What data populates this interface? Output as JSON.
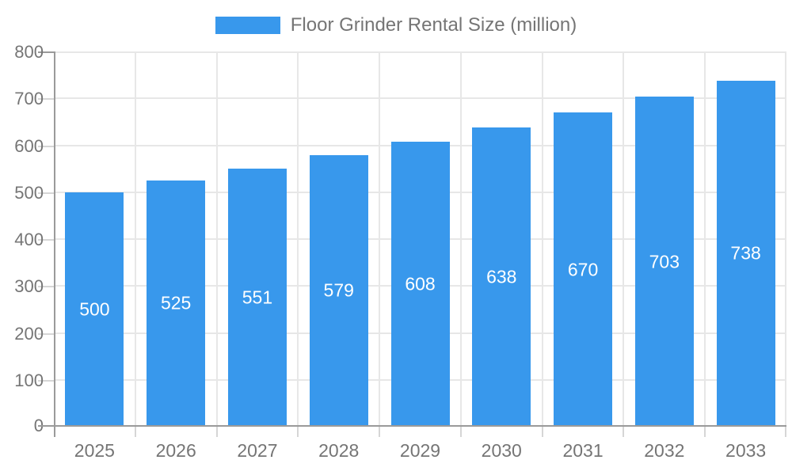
{
  "legend": {
    "items": [
      {
        "label": "Floor Grinder Rental Size (million)",
        "swatch_color": "#3898ec"
      }
    ]
  },
  "colors": {
    "bar": "#3898ec",
    "axis": "#9a9a9a",
    "grid": "#e7e7e7",
    "tick": "#d6d6d6",
    "text": "#757575",
    "bar_label": "#ffffff",
    "background": "#ffffff"
  },
  "chart_data": {
    "type": "bar",
    "categories": [
      "2025",
      "2026",
      "2027",
      "2028",
      "2029",
      "2030",
      "2031",
      "2032",
      "2033"
    ],
    "values": [
      500,
      525,
      551,
      579,
      608,
      638,
      670,
      703,
      738
    ],
    "title": "Floor Grinder Rental Size (million)",
    "xlabel": "",
    "ylabel": "",
    "ylim": [
      0,
      800
    ],
    "ytick_step": 100,
    "grid": true,
    "legend_position": "top",
    "bar_labels_inside": true
  }
}
